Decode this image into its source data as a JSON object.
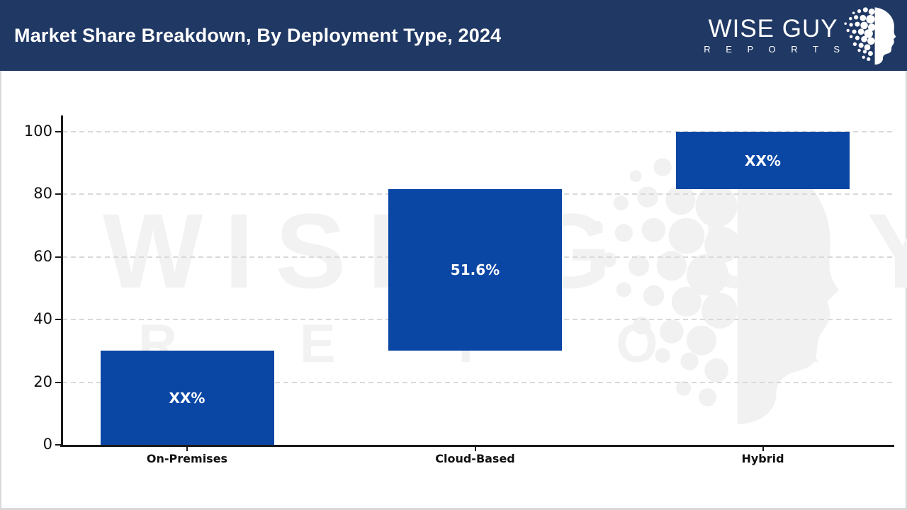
{
  "header": {
    "title": "Market Share Breakdown, By Deployment Type, 2024",
    "logo": {
      "name": "WISE GUY",
      "tagline": "R E P O R T S"
    },
    "bg_color": "#203864"
  },
  "watermark": {
    "line1": "WISE G U Y",
    "line2": "R E P O R T S"
  },
  "chart_data": {
    "type": "bar",
    "subtype": "waterfall",
    "title": "Market Share Breakdown, By Deployment Type, 2024",
    "categories": [
      "On-Premises",
      "Cloud-Based",
      "Hybrid"
    ],
    "segments": [
      {
        "category": "On-Premises",
        "start": 0,
        "end": 30,
        "bar_label": "XX%"
      },
      {
        "category": "Cloud-Based",
        "start": 30,
        "end": 81.6,
        "bar_label": "51.6%"
      },
      {
        "category": "Hybrid",
        "start": 81.6,
        "end": 100,
        "bar_label": "XX%"
      }
    ],
    "ylim": [
      0,
      100
    ],
    "yticks": [
      0,
      20,
      40,
      60,
      80,
      100
    ],
    "xlabel": "",
    "ylabel": "",
    "grid": "horizontal-dashed",
    "legend": "none",
    "colors": {
      "bar": "#0a47a5",
      "header_bg": "#203864",
      "grid": "#d9d9d9",
      "axis": "#1a1a1a",
      "bar_label": "#ffffff",
      "tick_label": "#111111"
    }
  }
}
